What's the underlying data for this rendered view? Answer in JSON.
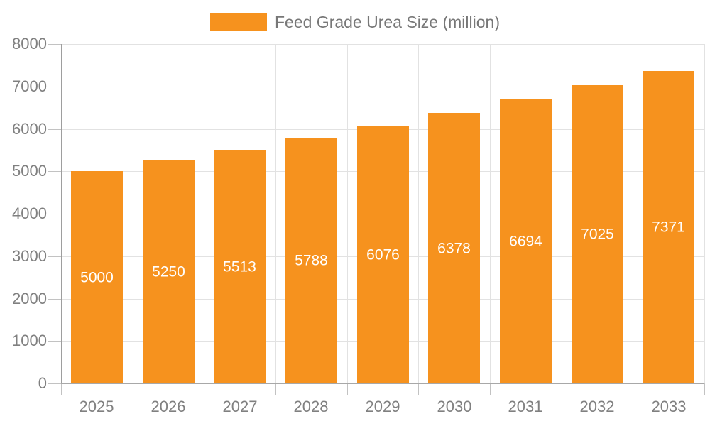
{
  "legend": {
    "label": "Feed Grade Urea Size (million)",
    "swatch_color": "#F6921E"
  },
  "chart_data": {
    "type": "bar",
    "title": "",
    "categories": [
      "2025",
      "2026",
      "2027",
      "2028",
      "2029",
      "2030",
      "2031",
      "2032",
      "2033"
    ],
    "series": [
      {
        "name": "Feed Grade Urea Size (million)",
        "color": "#F6921E",
        "values": [
          5000,
          5250,
          5513,
          5788,
          6076,
          6378,
          6694,
          7025,
          7371
        ]
      }
    ],
    "bar_labels": [
      "5000",
      "5250",
      "5513",
      "5788",
      "6076",
      "6378",
      "6694",
      "7025",
      "7371"
    ],
    "xlabel": "",
    "ylabel": "",
    "ylim": [
      0,
      8000
    ],
    "y_tick_step": 1000,
    "y_tick_labels": [
      "0",
      "1000",
      "2000",
      "3000",
      "4000",
      "5000",
      "6000",
      "7000",
      "8000"
    ],
    "grid": true,
    "legend_position": "top",
    "colors": {
      "bar": "#F6921E",
      "bar_label_text": "#ffffff",
      "axis_tick_text": "#808080",
      "legend_text": "#777777",
      "gridline": "#E2E2E2",
      "axis_line": "#9E9E9E",
      "background": "#ffffff"
    }
  }
}
